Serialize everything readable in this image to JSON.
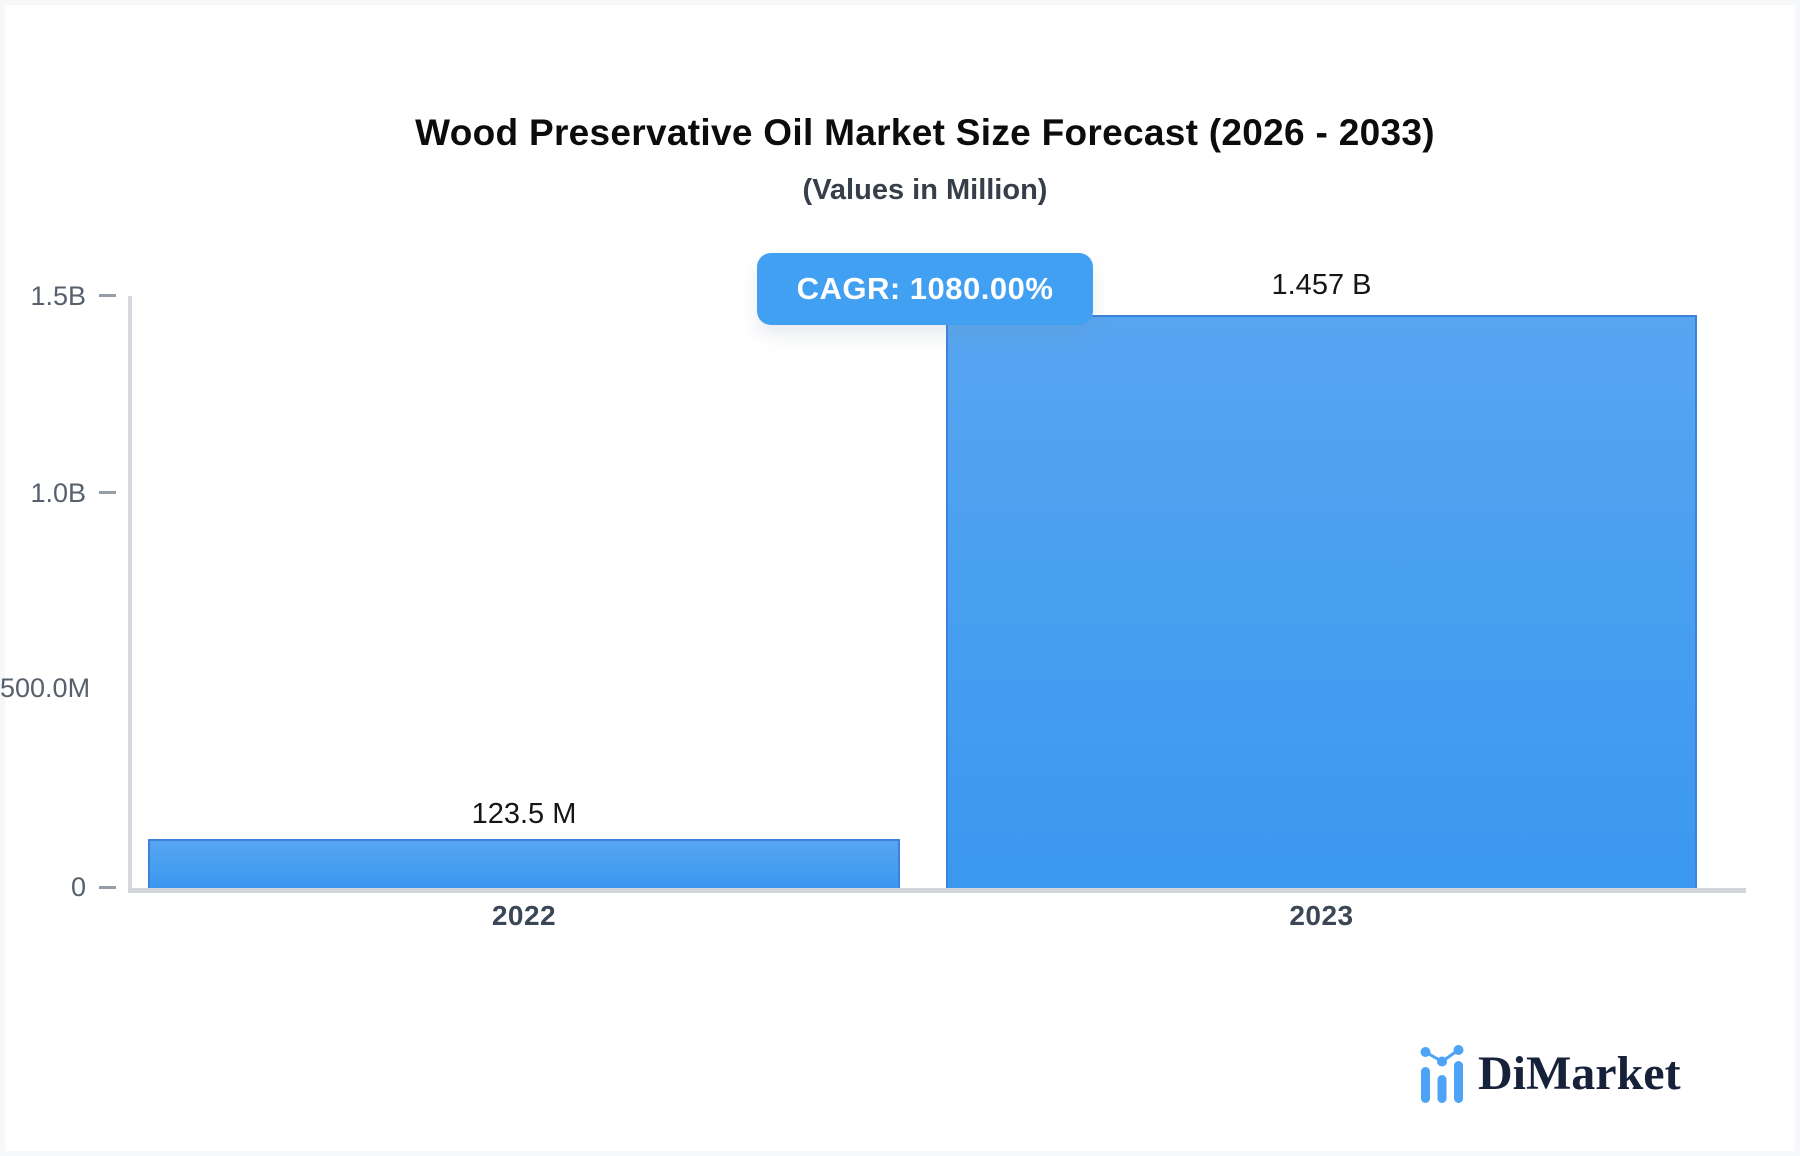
{
  "chart": {
    "title": "Wood Preservative Oil Market Size Forecast (2026 - 2033)",
    "subtitle": "(Values in Million)",
    "cagr_text": "CAGR: 1080.00%"
  },
  "chart_data": {
    "type": "bar",
    "title": "Wood Preservative Oil Market Size Forecast (2026 - 2033)",
    "subtitle": "(Values in Million)",
    "categories": [
      "2022",
      "2023"
    ],
    "values_millions": [
      123.5,
      1457
    ],
    "value_labels": [
      "123.5 M",
      "1.457 B"
    ],
    "cagr_percent": "1080.00%",
    "ylabel": "",
    "xlabel": "",
    "ytick_labels": [
      "0",
      "500.0M",
      "1.0B",
      "1.5B"
    ],
    "ylim_millions": [
      0,
      1500
    ],
    "grid": "off",
    "legend": "none",
    "bar_color_top": "#57a5f1",
    "bar_color_bottom": "#3a98ef",
    "bar_border_color": "#3d81da"
  },
  "colors": {
    "badge_background": "#41a0f2",
    "badge_text": "#ffffff",
    "axis_line": "#d5d9de",
    "tick_label": "#57616e",
    "category_label": "#3b4656",
    "title_text": "#0b0c0e",
    "logo_blue": "#4da3f5",
    "logo_navy": "#16223a"
  },
  "logo": {
    "text": "DiMarket"
  }
}
